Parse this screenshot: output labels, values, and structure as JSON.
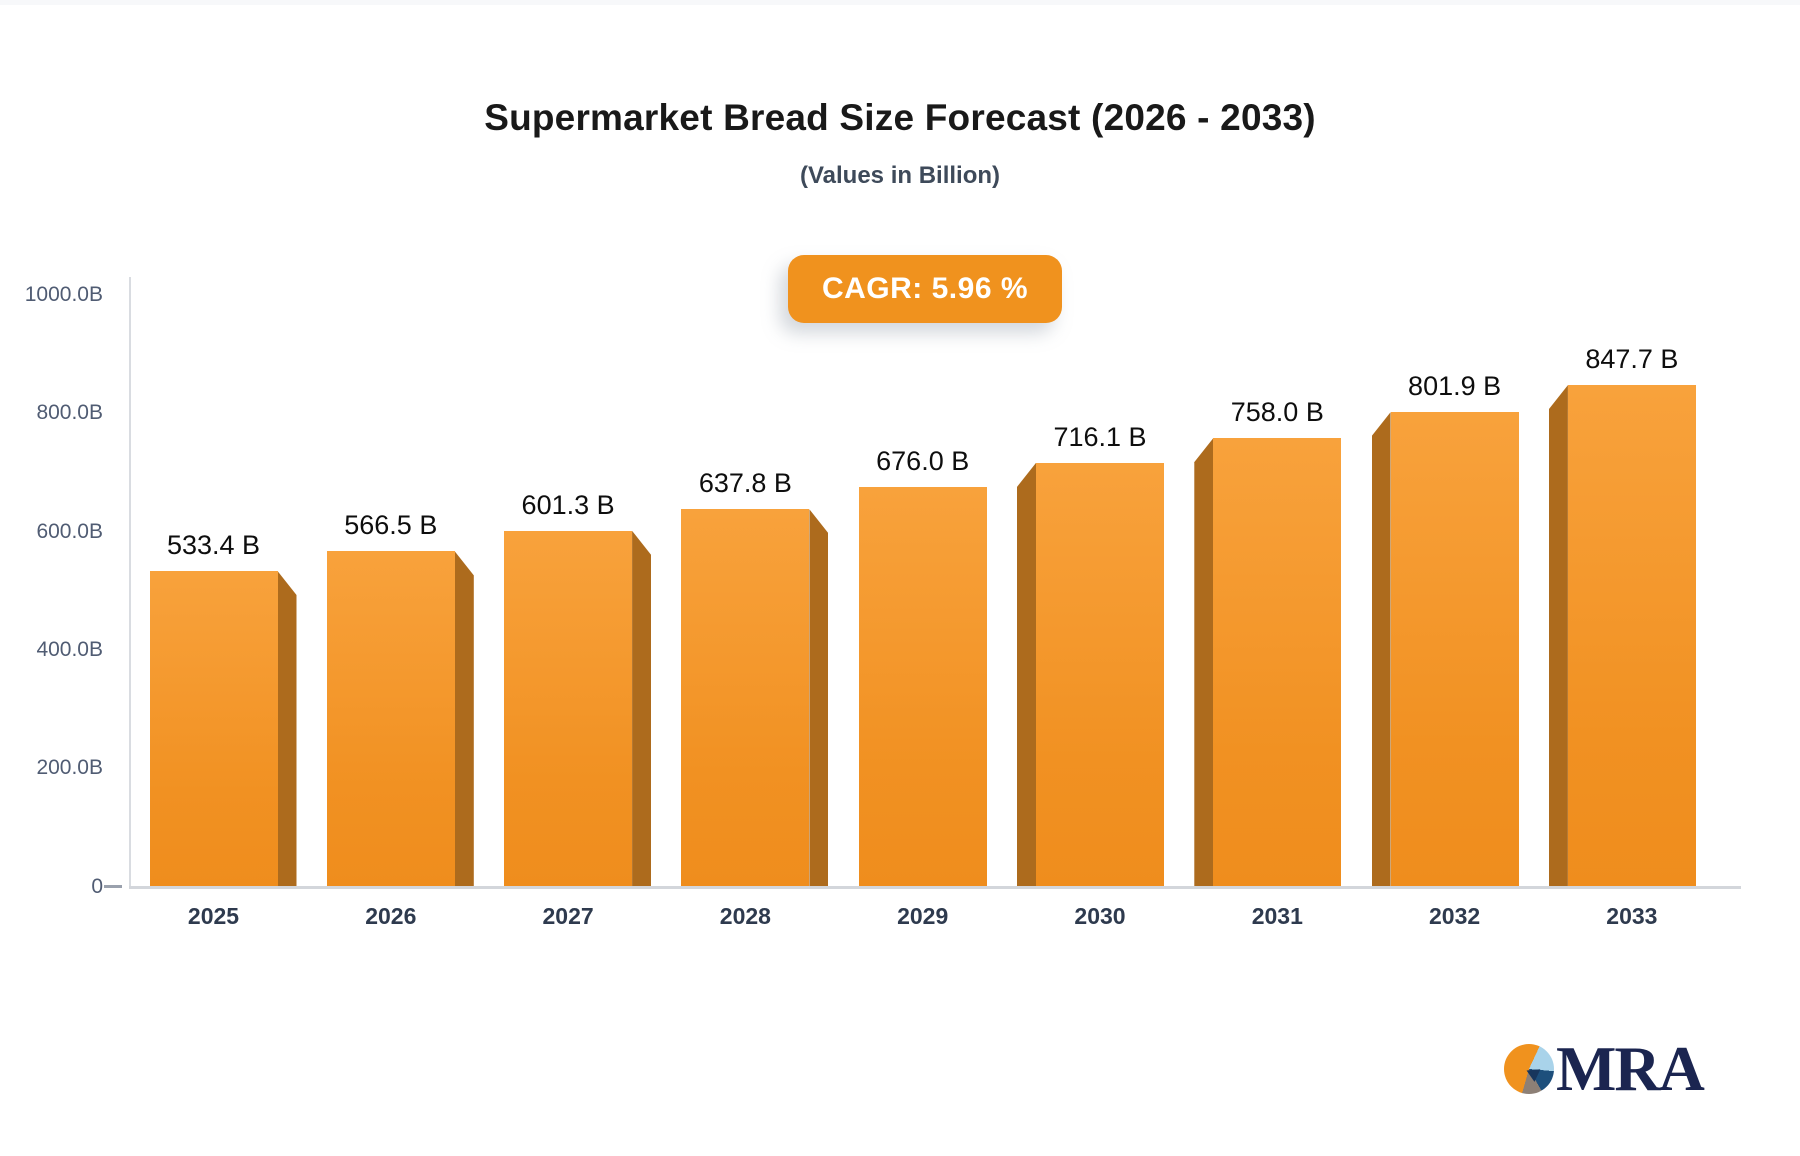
{
  "page": {
    "title": "Supermarket Bread Size Forecast (2026 - 2033)",
    "subtitle": "(Values in Billion)"
  },
  "badge": {
    "label": "CAGR: 5.96 %"
  },
  "y_axis": {
    "ticks": [
      {
        "label": "1000.0B",
        "value": 1000
      },
      {
        "label": "800.0B",
        "value": 800
      },
      {
        "label": "600.0B",
        "value": 600
      },
      {
        "label": "400.0B",
        "value": 400
      },
      {
        "label": "200.0B",
        "value": 200
      },
      {
        "label": "0",
        "value": 0
      }
    ]
  },
  "logo": {
    "text": "MRA",
    "pie_icon": "pie-chart-icon"
  },
  "colors": {
    "accent_orange": "#f0921e",
    "bar_face_top": "#f8a23c",
    "bar_face_bottom": "#ef8d1d",
    "bar_side": "#ad6b1d",
    "axis_line": "#d6d9de",
    "title_text": "#191919",
    "subtitle_text": "#3e4a5a",
    "y_label_text": "#505c73",
    "x_label_text": "#2e3a4e",
    "logo_navy": "#1b2550",
    "logo_blue": "#a9d3ea",
    "logo_dark_blue": "#1d4f7c",
    "logo_gray": "#8d8076"
  },
  "chart_data": {
    "type": "bar",
    "title": "Supermarket Bread Size Forecast (2026 - 2033)",
    "subtitle": "(Values in Billion)",
    "unit": "Billion (B)",
    "cagr": "5.96 %",
    "categories": [
      "2025",
      "2026",
      "2027",
      "2028",
      "2029",
      "2030",
      "2031",
      "2032",
      "2033"
    ],
    "values": [
      533.4,
      566.5,
      601.3,
      637.8,
      676.0,
      716.1,
      758.0,
      801.9,
      847.7
    ],
    "bar_labels": [
      "533.4 B",
      "566.5 B",
      "601.3 B",
      "637.8 B",
      "676.0 B",
      "716.1 B",
      "758.0 B",
      "801.9 B",
      "847.7 B"
    ],
    "xlabel": "",
    "ylabel": "",
    "ylim": [
      0,
      1000
    ],
    "y_ticks": [
      0,
      200,
      400,
      600,
      800,
      1000
    ],
    "grid": false,
    "legend": false,
    "style": "3d-perspective-bars, side shading faces outward from center bar (2029)"
  }
}
